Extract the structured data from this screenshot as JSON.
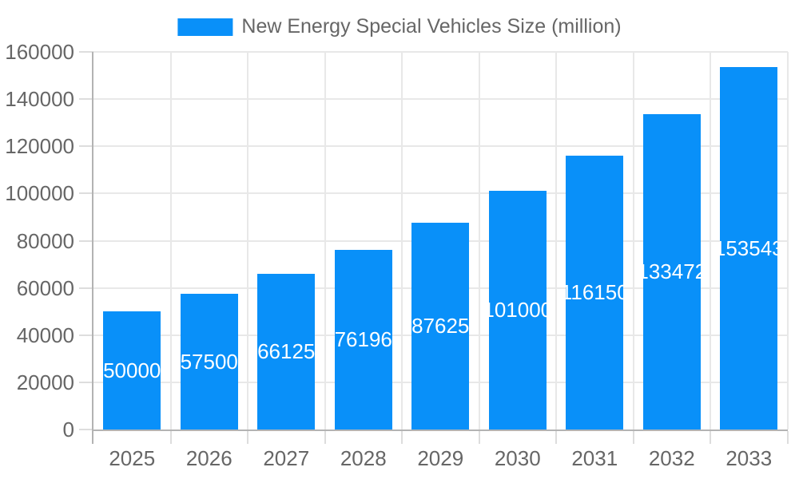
{
  "legend": {
    "label": "New Energy Special Vehicles Size (million)"
  },
  "chart_data": {
    "type": "bar",
    "title": "New Energy Special Vehicles Size (million)",
    "categories": [
      "2025",
      "2026",
      "2027",
      "2028",
      "2029",
      "2030",
      "2031",
      "2032",
      "2033"
    ],
    "values": [
      50000,
      57500,
      66125,
      76196,
      87625,
      101000,
      116150,
      133472,
      153543
    ],
    "xlabel": "",
    "ylabel": "",
    "ylim": [
      0,
      160000
    ],
    "ytick_step": 20000,
    "yticks": [
      0,
      20000,
      40000,
      60000,
      80000,
      100000,
      120000,
      140000,
      160000
    ],
    "grid": true,
    "legend_position": "top",
    "bar_color": "#0990f9",
    "value_label_color": "#ffffff",
    "tick_text_color": "#666666",
    "grid_color": "#e8e8e8",
    "tick_mark_color": "#dddddd",
    "axis_color": "#b3b3b3"
  }
}
